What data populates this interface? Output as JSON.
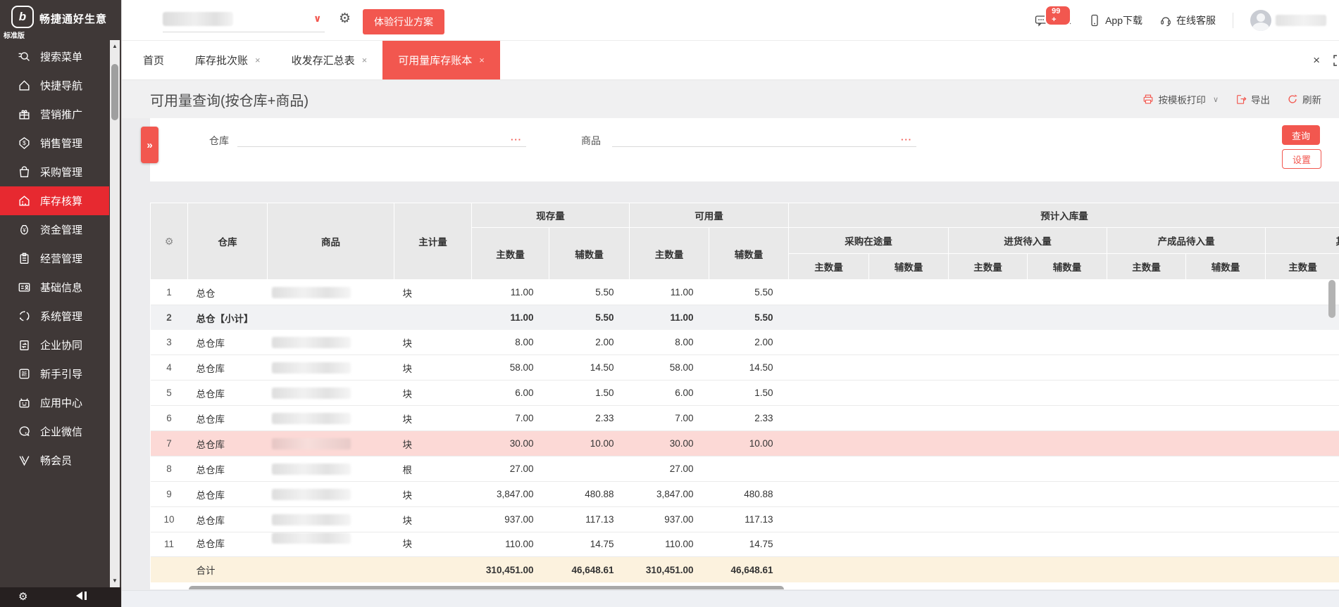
{
  "app": {
    "name": "畅捷通好生意",
    "edition": "标准版",
    "logo_glyph": "b"
  },
  "colors": {
    "accent": "#f2574f",
    "badge": "#f2574f",
    "sidebar-bg": "#3f3837",
    "sidebar-active": "#e72930",
    "header-bg": "#e9e9e9",
    "row-highlight": "#fcd9d6",
    "row-subtotal": "#f1f2f4",
    "row-total": "#fcf2de"
  },
  "topbar": {
    "experience_button": "体验行业方案",
    "messages_label": "消息",
    "messages_badge": "99 +",
    "app_download_label": "App下载",
    "online_service_label": "在线客服",
    "gear_glyph": "⚙",
    "caret_glyph": "∨"
  },
  "tabs": [
    {
      "label": "首页",
      "closable": false,
      "active": false
    },
    {
      "label": "库存批次账",
      "closable": true,
      "active": false
    },
    {
      "label": "收发存汇总表",
      "closable": true,
      "active": false
    },
    {
      "label": "可用量库存账本",
      "closable": true,
      "active": true
    }
  ],
  "page": {
    "title": "可用量查询(按仓库+商品)",
    "print_label": "按模板打印",
    "export_label": "导出",
    "refresh_label": "刷新"
  },
  "filters": {
    "warehouse_label": "仓库",
    "product_label": "商品",
    "ellipsis": "···",
    "expander_glyph": "»",
    "query_button": "查询",
    "settings_button": "设置"
  },
  "sidebar": {
    "items": [
      {
        "label": "搜索菜单",
        "icon": "search-icon",
        "active": false
      },
      {
        "label": "快捷导航",
        "icon": "home-icon",
        "active": false
      },
      {
        "label": "营销推广",
        "icon": "gift-icon",
        "active": false
      },
      {
        "label": "销售管理",
        "icon": "sales-badge-icon",
        "active": false
      },
      {
        "label": "采购管理",
        "icon": "shopping-bag-icon",
        "active": false
      },
      {
        "label": "库存核算",
        "icon": "warehouse-icon",
        "active": true
      },
      {
        "label": "资金管理",
        "icon": "money-bag-icon",
        "active": false
      },
      {
        "label": "经营管理",
        "icon": "clipboard-icon",
        "active": false
      },
      {
        "label": "基础信息",
        "icon": "id-card-icon",
        "active": false
      },
      {
        "label": "系统管理",
        "icon": "system-circle-icon",
        "active": false
      },
      {
        "label": "企业协同",
        "icon": "collab-clipboard-icon",
        "active": false
      },
      {
        "label": "新手引导",
        "icon": "newbie-icon",
        "active": false
      },
      {
        "label": "应用中心",
        "icon": "app-center-icon",
        "active": false
      },
      {
        "label": "企业微信",
        "icon": "wechat-icon",
        "active": false
      },
      {
        "label": "畅会员",
        "icon": "member-v-icon",
        "active": false
      }
    ],
    "bottom": {
      "gear_glyph": "⚙"
    }
  },
  "table": {
    "header": {
      "gear_glyph": "⚙",
      "warehouse": "仓库",
      "product": "商品",
      "main_unit": "主计量",
      "onhand": "现存量",
      "available": "可用量",
      "expected_in": "预计入库量",
      "sub_main": "主数量",
      "sub_aux": "辅数量",
      "purchase_transit": "采购在途量",
      "incoming_pending": "进货待入量",
      "finished_pending": "产成品待入量",
      "partial_group": "其"
    },
    "rows": [
      {
        "seq": "1",
        "warehouse": "总仓",
        "product_blur": true,
        "unit": "块",
        "qty": [
          "11.00",
          "5.50",
          "11.00",
          "5.50"
        ]
      },
      {
        "seq": "2",
        "warehouse": "总仓【小计】",
        "product_blur": false,
        "unit": "",
        "qty": [
          "11.00",
          "5.50",
          "11.00",
          "5.50"
        ],
        "subtotal": true
      },
      {
        "seq": "3",
        "warehouse": "总仓库",
        "product_blur": true,
        "unit": "块",
        "qty": [
          "8.00",
          "2.00",
          "8.00",
          "2.00"
        ]
      },
      {
        "seq": "4",
        "warehouse": "总仓库",
        "product_blur": true,
        "unit": "块",
        "qty": [
          "58.00",
          "14.50",
          "58.00",
          "14.50"
        ]
      },
      {
        "seq": "5",
        "warehouse": "总仓库",
        "product_blur": true,
        "unit": "块",
        "qty": [
          "6.00",
          "1.50",
          "6.00",
          "1.50"
        ]
      },
      {
        "seq": "6",
        "warehouse": "总仓库",
        "product_blur": true,
        "unit": "块",
        "qty": [
          "7.00",
          "2.33",
          "7.00",
          "2.33"
        ]
      },
      {
        "seq": "7",
        "warehouse": "总仓库",
        "product_blur": true,
        "unit": "块",
        "qty": [
          "30.00",
          "10.00",
          "30.00",
          "10.00"
        ],
        "highlight": true
      },
      {
        "seq": "8",
        "warehouse": "总仓库",
        "product_blur": true,
        "unit": "根",
        "qty": [
          "27.00",
          "",
          "27.00",
          ""
        ]
      },
      {
        "seq": "9",
        "warehouse": "总仓库",
        "product_blur": true,
        "unit": "块",
        "qty": [
          "3,847.00",
          "480.88",
          "3,847.00",
          "480.88"
        ]
      },
      {
        "seq": "10",
        "warehouse": "总仓库",
        "product_blur": true,
        "unit": "块",
        "qty": [
          "937.00",
          "117.13",
          "937.00",
          "117.13"
        ]
      },
      {
        "seq": "11",
        "warehouse": "总仓库",
        "product_blur": true,
        "unit": "块",
        "qty": [
          "110.00",
          "14.75",
          "110.00",
          "14.75"
        ],
        "partial": true
      }
    ],
    "total": {
      "label": "合计",
      "qty": [
        "310,451.00",
        "46,648.61",
        "310,451.00",
        "46,648.61"
      ]
    }
  }
}
